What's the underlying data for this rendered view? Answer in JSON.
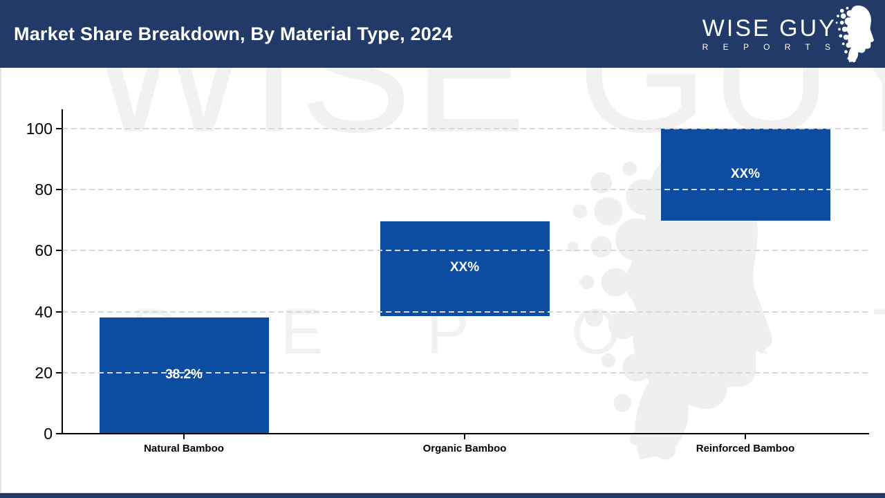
{
  "header": {
    "title": "Market Share Breakdown, By Material Type, 2024",
    "logo": {
      "line1": "WISE GUY",
      "line2": "R E P O R T S"
    }
  },
  "watermark": {
    "line1": "WISE GUY",
    "line2": "R E P O R T S"
  },
  "colors": {
    "header_bg": "#213A67",
    "footer_bg": "#213A67",
    "bar": "#0C4DA2",
    "bar_label_text": "#FFFFFF",
    "gridline": "#D8D8D8",
    "axis": "#000000",
    "watermark_text": "#F1F1F1",
    "watermark_face": "#EFEFEF",
    "title_text": "#FFFFFF"
  },
  "chart_data": {
    "type": "bar",
    "subtype": "stacked-waterfall-segments",
    "title": "Market Share Breakdown, By Material Type, 2024",
    "categories": [
      "Natural Bamboo",
      "Organic Bamboo",
      "Reinforced Bamboo"
    ],
    "segments": [
      {
        "category": "Natural Bamboo",
        "start": 0,
        "end": 38.2,
        "label": "38.2%"
      },
      {
        "category": "Organic Bamboo",
        "start": 38.5,
        "end": 69.7,
        "label": "XX%"
      },
      {
        "category": "Reinforced Bamboo",
        "start": 69.8,
        "end": 100,
        "label": "XX%"
      }
    ],
    "y_ticks": [
      0,
      20,
      40,
      60,
      80,
      100
    ],
    "ylim": [
      0,
      105
    ],
    "xlabel": "",
    "ylabel": "",
    "grid": "dashed-horizontal-over-bars",
    "legend": "none"
  }
}
